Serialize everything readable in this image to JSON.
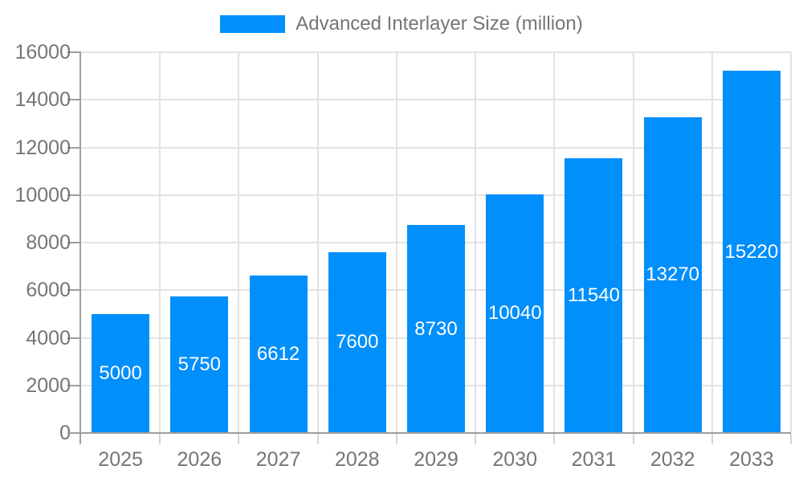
{
  "legend": {
    "label": "Advanced Interlayer Size (million)",
    "swatch_color": "#008FFB"
  },
  "chart_data": {
    "type": "bar",
    "title": "",
    "xlabel": "",
    "ylabel": "",
    "categories": [
      "2025",
      "2026",
      "2027",
      "2028",
      "2029",
      "2030",
      "2031",
      "2032",
      "2033"
    ],
    "series": [
      {
        "name": "Advanced Interlayer Size (million)",
        "values": [
          5000,
          5750,
          6612,
          7600,
          8730,
          10040,
          11540,
          13270,
          15220
        ]
      }
    ],
    "ylim": [
      0,
      16000
    ],
    "ytick_step": 2000,
    "ytick_labels": [
      "0",
      "2000",
      "4000",
      "6000",
      "8000",
      "10000",
      "12000",
      "14000",
      "16000"
    ],
    "grid": true,
    "legend_position": "top",
    "bar_color": "#008FFB",
    "bar_label_color": "#ffffff",
    "axis_text_color": "#757575",
    "gridline_color": "#e3e3e3",
    "axis_line_color": "#9e9e9e"
  }
}
